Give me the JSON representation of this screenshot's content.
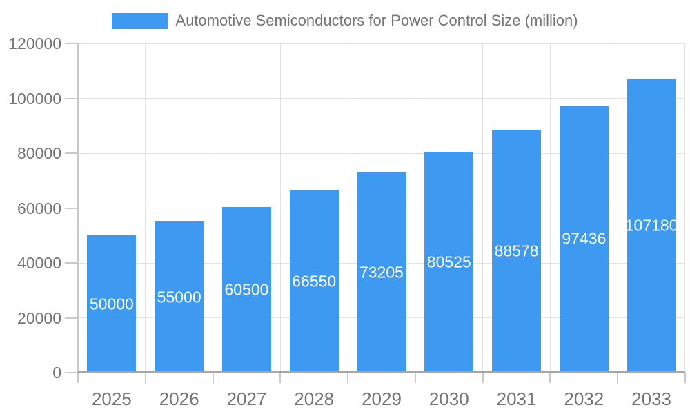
{
  "legend": {
    "label": "Automotive Semiconductors for Power Control Size (million)"
  },
  "colors": {
    "bar": "#3D9AF0",
    "bar_label": "#FFFFFF",
    "axis_text": "#757575",
    "legend_text": "#757575",
    "gridline": "#E2E2E2",
    "axis_line": "#C9C9C9",
    "baseline": "#A6A6A6"
  },
  "chart_data": {
    "type": "bar",
    "title": "Automotive Semiconductors for Power Control Size (million)",
    "categories": [
      "2025",
      "2026",
      "2027",
      "2028",
      "2029",
      "2030",
      "2031",
      "2032",
      "2033"
    ],
    "series": [
      {
        "name": "Automotive Semiconductors for Power Control Size (million)",
        "color": "#3D9AF0",
        "values": [
          50000,
          55000,
          60500,
          66550,
          73205,
          80525,
          88578,
          97436,
          107180
        ]
      }
    ],
    "bar_labels": [
      "50000",
      "55000",
      "60500",
      "66550",
      "73205",
      "80525",
      "88578",
      "97436",
      "107180"
    ],
    "xlabel": "",
    "ylabel": "",
    "ylim": [
      0,
      120000
    ],
    "yticks": [
      0,
      20000,
      40000,
      60000,
      80000,
      100000,
      120000
    ],
    "ytick_labels": [
      "0",
      "20000",
      "40000",
      "60000",
      "80000",
      "100000",
      "120000"
    ],
    "grid": true,
    "legend_position": "top",
    "bar_label_position": "center-inside"
  }
}
